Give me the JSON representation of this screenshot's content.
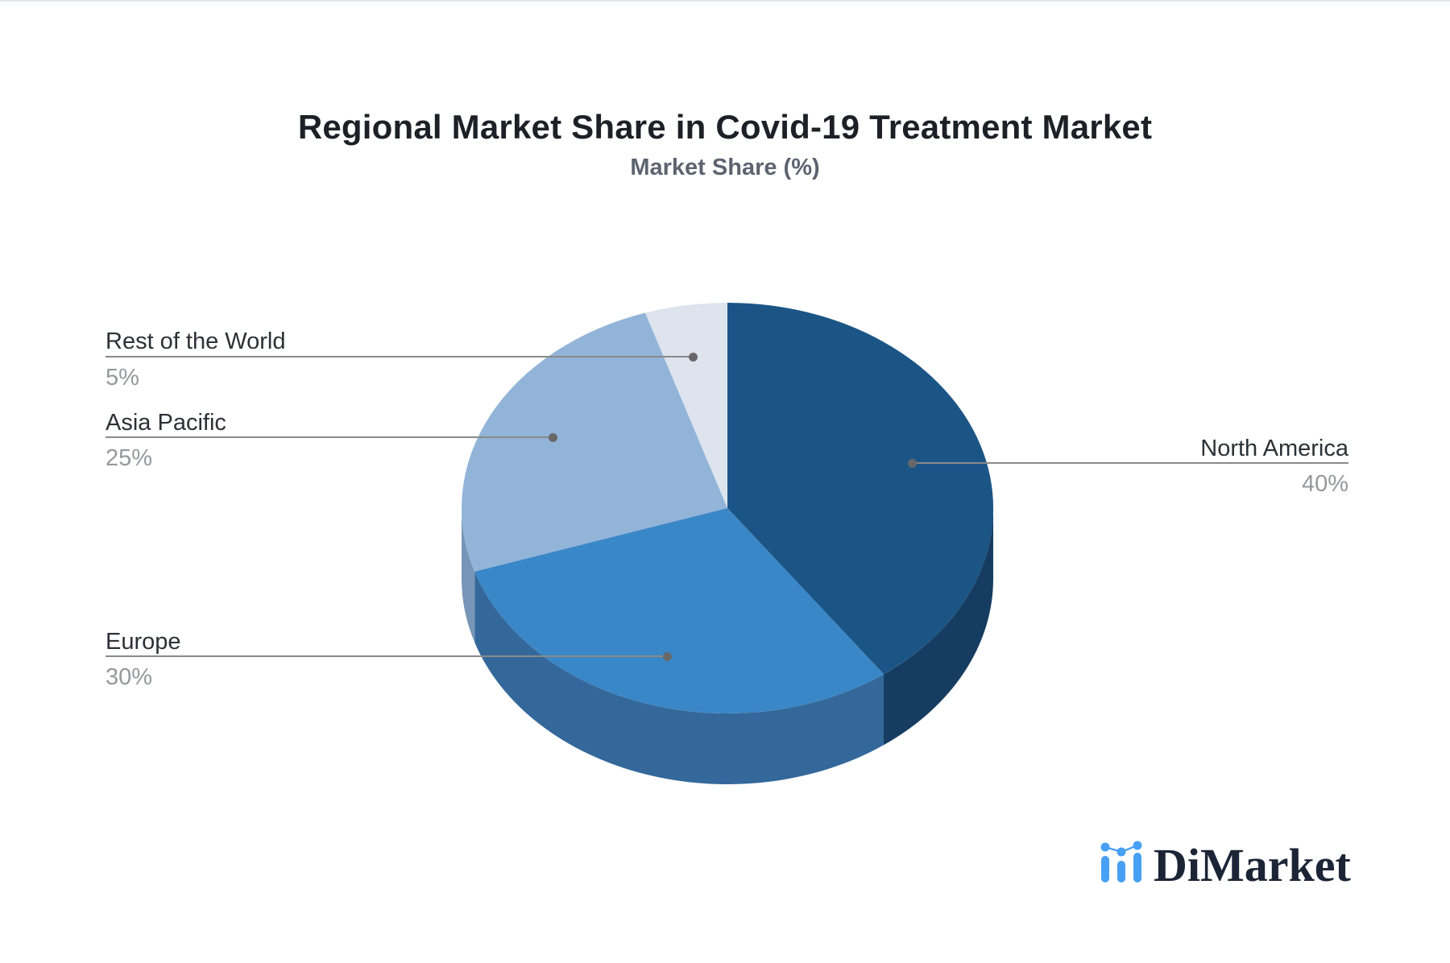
{
  "header": {
    "title": "Regional Market Share in Covid-19 Treatment Market",
    "subtitle": "Market Share (%)",
    "title_color": "#1d2127",
    "subtitle_color": "#5d6470"
  },
  "chart_data": {
    "type": "pie",
    "is_3d": true,
    "title": "Regional Market Share in Covid-19 Treatment Market",
    "subtitle": "Market Share (%)",
    "unit": "%",
    "start_angle": "12-o-clock",
    "direction": "clockwise",
    "legend_position": "callout-labels",
    "series": [
      {
        "label": "North America",
        "value": 40,
        "pct_label": "40%",
        "color": "#1b5586",
        "side_color": "#163d61"
      },
      {
        "label": "Europe",
        "value": 30,
        "pct_label": "30%",
        "color": "#3a87c7",
        "side_color": "#34689b"
      },
      {
        "label": "Asia Pacific",
        "value": 25,
        "pct_label": "25%",
        "color": "#92b4d8",
        "side_color": "#7795b6"
      },
      {
        "label": "Rest of the World",
        "value": 5,
        "pct_label": "5%",
        "color": "#dde4ee",
        "side_color": "#b9c5d4"
      }
    ]
  },
  "colors": {
    "leader_line": "#8a8a8a",
    "leader_dot": "#686868",
    "label_name": "#2c3136",
    "label_pct": "#96989c"
  },
  "logo": {
    "text": "DiMarket",
    "icon": "bar-chart-with-dots",
    "icon_color": "#47a0f3",
    "text_color": "#1b2536"
  }
}
